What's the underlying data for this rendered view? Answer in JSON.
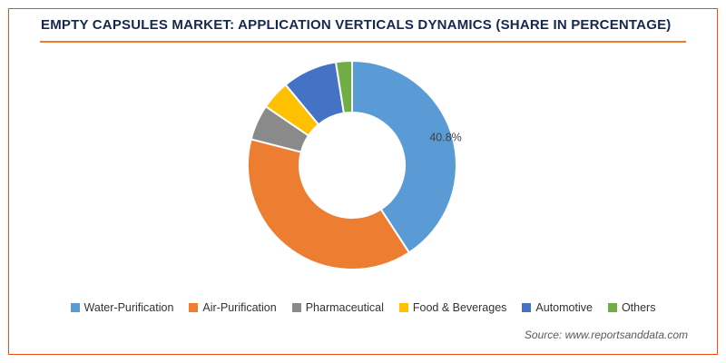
{
  "page": {
    "title": "EMPTY CAPSULES MARKET: APPLICATION VERTICALS DYNAMICS (SHARE IN PERCENTAGE)",
    "source": "Source: www.reportsanddata.com"
  },
  "colors": {
    "frame_border": "#ef4f10",
    "rule_color": "#ed7d31",
    "title_color": "#16284c",
    "label_text": "#404040"
  },
  "chart_data": {
    "type": "pie",
    "donut": true,
    "inner_radius_ratio": 0.5,
    "start_angle_deg": 0,
    "legend_position": "bottom",
    "title": "EMPTY CAPSULES MARKET: APPLICATION VERTICALS DYNAMICS (SHARE IN PERCENTAGE)",
    "slices": [
      {
        "name": "Water-Purification",
        "value": 40.8,
        "color": "#5b9bd5",
        "label": "40.8%"
      },
      {
        "name": "Air-Purification",
        "value": 38.2,
        "color": "#ed7d31"
      },
      {
        "name": "Pharmaceutical",
        "value": 5.5,
        "color": "#8a8a8a"
      },
      {
        "name": "Food & Beverages",
        "value": 4.5,
        "color": "#ffc000"
      },
      {
        "name": "Automotive",
        "value": 8.5,
        "color": "#4472c4"
      },
      {
        "name": "Others",
        "value": 2.5,
        "color": "#70ad47"
      }
    ]
  }
}
